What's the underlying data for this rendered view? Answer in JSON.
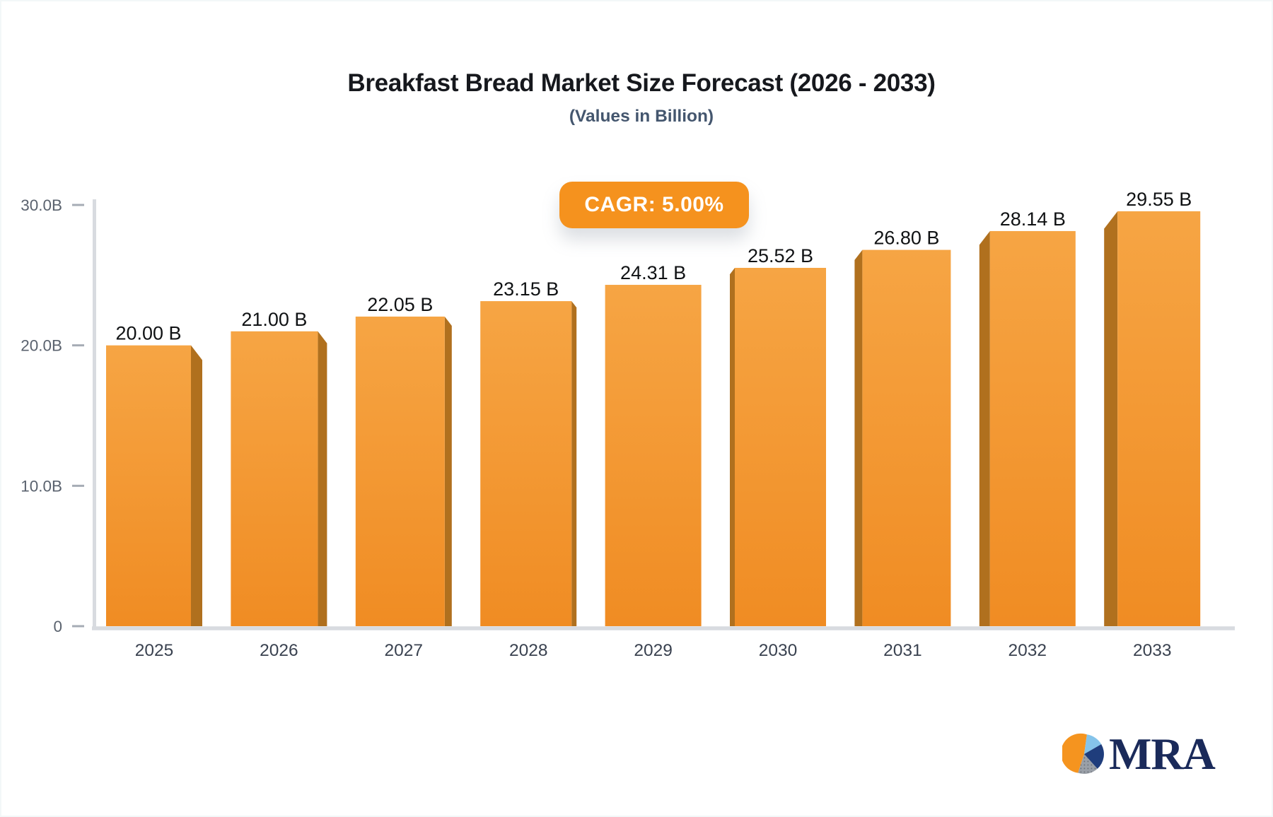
{
  "header": {
    "title": "Breakfast Bread Market Size Forecast (2026 - 2033)",
    "subtitle": "(Values in Billion)"
  },
  "badge": {
    "label": "CAGR: 5.00%",
    "bg": "#F5921E",
    "text_color": "#FFFFFF"
  },
  "chart_data": {
    "type": "bar",
    "title": "Breakfast Bread Market Size Forecast (2026 - 2033)",
    "subtitle": "(Values in Billion)",
    "cagr": "CAGR: 5.00%",
    "categories": [
      "2025",
      "2026",
      "2027",
      "2028",
      "2029",
      "2030",
      "2031",
      "2032",
      "2033"
    ],
    "values": [
      20.0,
      21.0,
      22.05,
      23.15,
      24.31,
      25.52,
      26.8,
      28.14,
      29.55
    ],
    "value_labels": [
      "20.00 B",
      "21.00 B",
      "22.05 B",
      "23.15 B",
      "24.31 B",
      "25.52 B",
      "26.80 B",
      "28.14 B",
      "29.55 B"
    ],
    "xlabel": "",
    "ylabel": "",
    "ylim": [
      0,
      30
    ],
    "yticks": [
      {
        "value": 0,
        "label": "0"
      },
      {
        "value": 10,
        "label": "10.0B"
      },
      {
        "value": 20,
        "label": "20.0B"
      },
      {
        "value": 30,
        "label": "30.0B"
      }
    ],
    "grid": false,
    "legend": false,
    "colors": {
      "bar_top": "#F6A544",
      "bar_bottom": "#F08C23",
      "bar_side": "#B0701E",
      "axis_line": "#D8DBE0",
      "tick_dash": "#A6ACB5",
      "y_label": "#5A626E",
      "x_label": "#3A4250",
      "value_label": "#101214"
    }
  },
  "logo": {
    "text": "MRA",
    "colors": {
      "text": "#1A2A5A",
      "pie_orange": "#F5941F",
      "pie_lightblue": "#85C4EA",
      "pie_navy": "#1F3D7C",
      "pie_gray": "#9AA0A8"
    }
  }
}
